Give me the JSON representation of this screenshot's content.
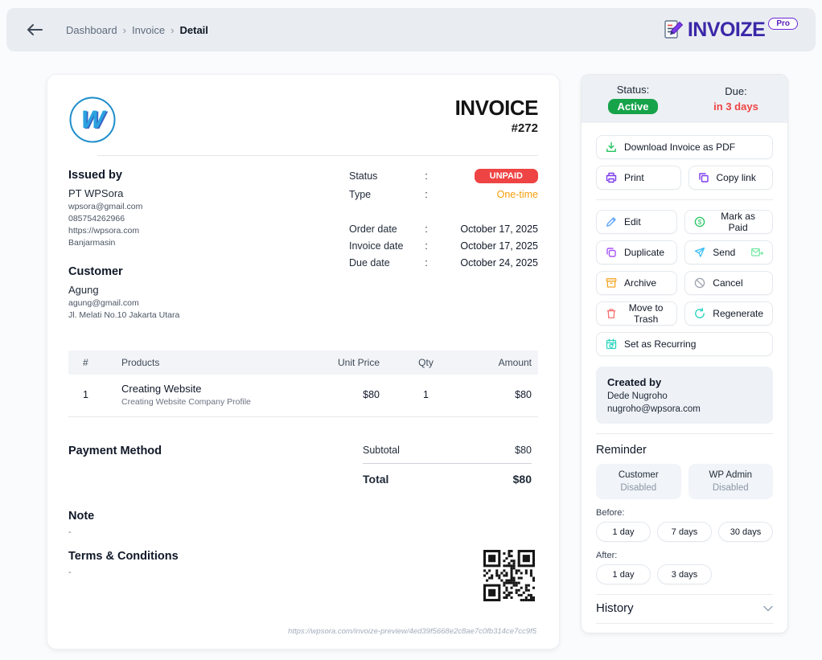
{
  "topbar": {
    "breadcrumb": {
      "items": [
        "Dashboard",
        "Invoice",
        "Detail"
      ],
      "sep": "›"
    },
    "logo": {
      "text": "INVOIZE",
      "badge": "Pro"
    }
  },
  "invoice": {
    "title": "INVOICE",
    "number": "#272",
    "issued_by": {
      "heading": "Issued by",
      "name": "PT WPSora",
      "lines": [
        "wpsora@gmail.com",
        "085754262966",
        "https://wpsora.com",
        "Banjarmasin"
      ]
    },
    "customer": {
      "heading": "Customer",
      "name": "Agung",
      "lines": [
        "agung@gmail.com",
        "Jl. Melati No.10 Jakarta Utara"
      ]
    },
    "meta": {
      "colon": ":",
      "status_label": "Status",
      "status_value": "UNPAID",
      "type_label": "Type",
      "type_value": "One-time",
      "order_date_label": "Order date",
      "order_date": "October 17, 2025",
      "invoice_date_label": "Invoice date",
      "invoice_date": "October 17, 2025",
      "due_date_label": "Due date",
      "due_date": "October 24, 2025"
    },
    "table": {
      "headers": {
        "num": "#",
        "products": "Products",
        "unit_price": "Unit Price",
        "qty": "Qty",
        "amount": "Amount"
      },
      "rows": [
        {
          "num": "1",
          "product": "Creating Website",
          "description": "Creating Website Company Profile",
          "unit_price": "$80",
          "qty": "1",
          "amount": "$80"
        }
      ]
    },
    "payment_method_heading": "Payment Method",
    "totals": {
      "subtotal_label": "Subtotal",
      "subtotal": "$80",
      "total_label": "Total",
      "total": "$80"
    },
    "note": {
      "heading": "Note",
      "content": "-"
    },
    "terms": {
      "heading": "Terms & Conditions",
      "content": "-"
    },
    "preview_url": "https://wpsora.com/invoize-preview/4ed39f5668e2c8ae7c0fb314ce7cc9f5"
  },
  "sidebar": {
    "status_label": "Status:",
    "status_value": "Active",
    "due_label": "Due:",
    "due_value": "in 3 days",
    "actions": {
      "download": "Download Invoice as PDF",
      "print": "Print",
      "copy_link": "Copy link",
      "edit": "Edit",
      "mark_as_paid": "Mark as Paid",
      "duplicate": "Duplicate",
      "send": "Send",
      "archive": "Archive",
      "cancel": "Cancel",
      "move_to_trash": "Move to Trash",
      "regenerate": "Regenerate",
      "set_as_recurring": "Set as Recurring"
    },
    "created_by": {
      "heading": "Created by",
      "name": "Dede Nugroho",
      "email": "nugroho@wpsora.com"
    },
    "reminder": {
      "heading": "Reminder",
      "customer": {
        "label": "Customer",
        "status": "Disabled"
      },
      "wp_admin": {
        "label": "WP Admin",
        "status": "Disabled"
      },
      "before_label": "Before:",
      "before_options": [
        "1 day",
        "7 days",
        "30 days"
      ],
      "after_label": "After:",
      "after_options": [
        "1 day",
        "3 days"
      ]
    },
    "history": {
      "heading": "History"
    }
  },
  "colors": {
    "brand": "#3b28a8",
    "unpaid_badge": "#ef4444",
    "active_badge": "#17a34a",
    "one_time": "#f59e0b",
    "due_warning": "#ef4444",
    "topbar_bg": "#e9edf2"
  }
}
